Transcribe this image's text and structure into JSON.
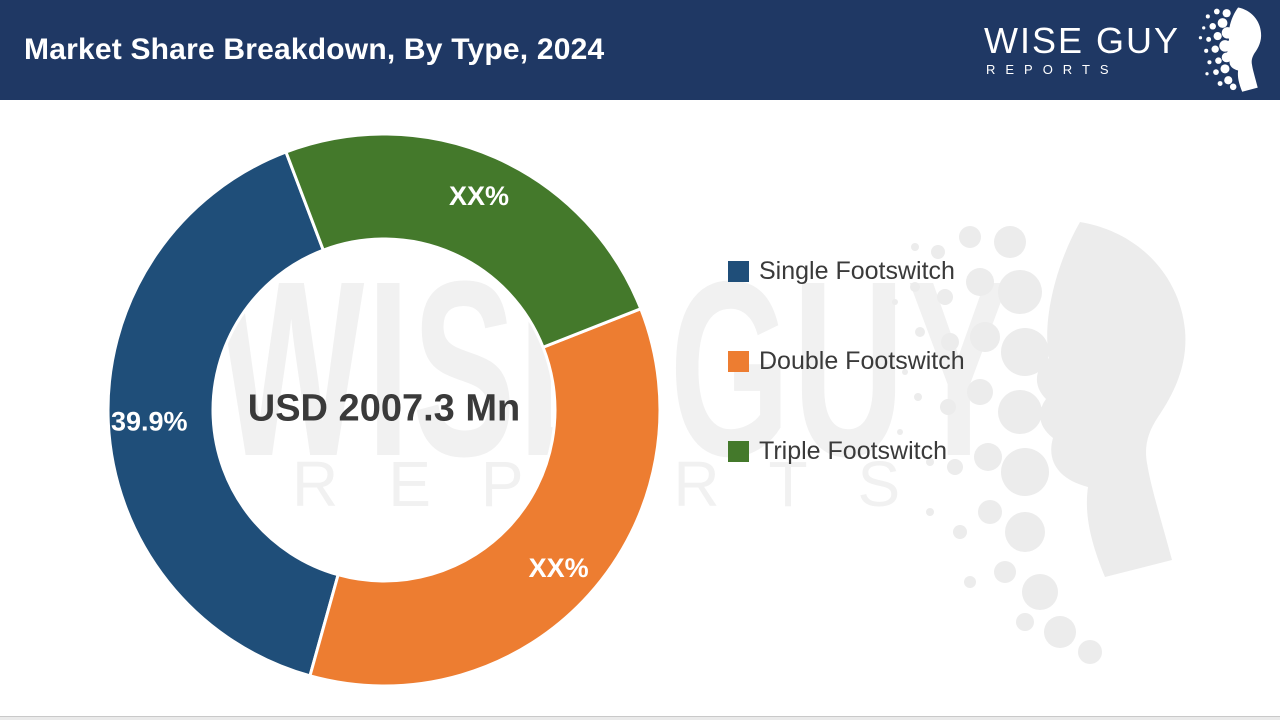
{
  "header": {
    "title": "Market Share Breakdown, By Type, 2024",
    "logo": {
      "line1": "WISE GUY",
      "line2": "REPORTS"
    }
  },
  "watermark": {
    "line1": "WISE GUY",
    "line2": "REPORTS"
  },
  "colors": {
    "header_bar": "#1f3864",
    "single_footswitch": "#1f4e79",
    "double_footswitch": "#ed7d31",
    "triple_footswitch": "#44792b",
    "label_text": "#3a3a3a",
    "slice_label_text": "#ffffff"
  },
  "chart_data": {
    "type": "pie",
    "subtype": "donut",
    "title": "Market Share Breakdown, By Type, 2024",
    "center_label": "USD 2007.3 Mn",
    "slices": [
      {
        "label": "Single Footswitch",
        "value": 39.9,
        "display": "39.9%",
        "color": "#1f4e79"
      },
      {
        "label": "Double Footswitch",
        "value": 35.3,
        "display": "XX%",
        "color": "#ed7d31"
      },
      {
        "label": "Triple Footswitch",
        "value": 24.8,
        "display": "XX%",
        "color": "#44792b"
      }
    ],
    "start_angle_deg": 110.8,
    "direction": "counterclockwise",
    "inner_radius_ratio": 0.62,
    "legend_position": "right"
  },
  "legend": {
    "items": [
      {
        "label": "Single Footswitch",
        "color": "#1f4e79"
      },
      {
        "label": "Double Footswitch",
        "color": "#ed7d31"
      },
      {
        "label": "Triple Footswitch",
        "color": "#44792b"
      }
    ]
  }
}
